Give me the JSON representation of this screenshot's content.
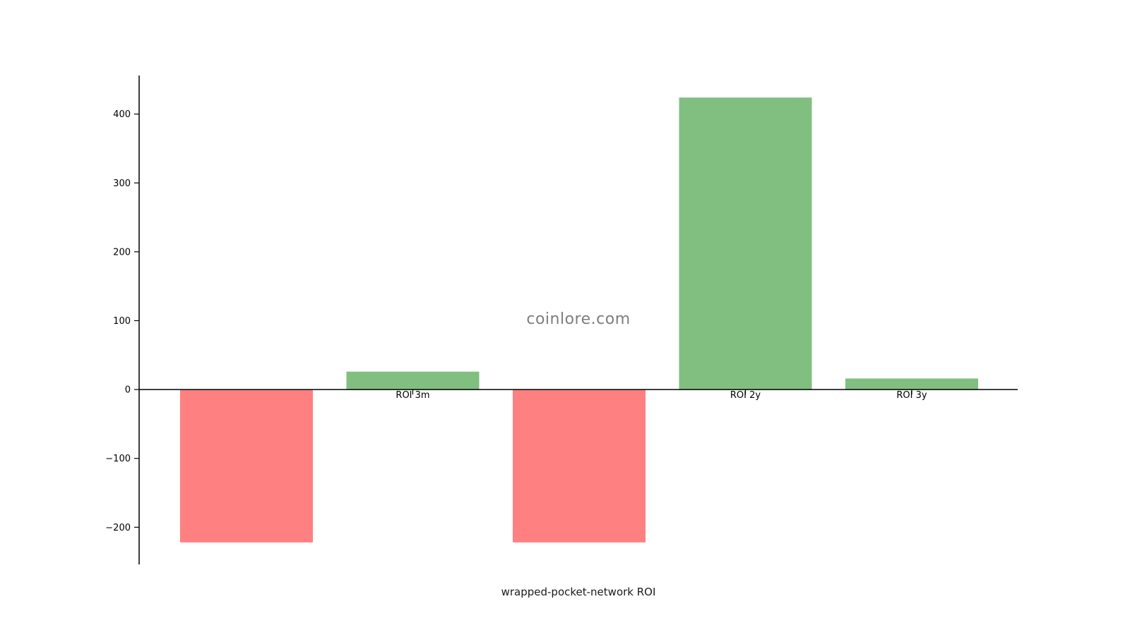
{
  "chart_data": {
    "type": "bar",
    "title": "wrapped-pocket-network ROI",
    "watermark": "coinlore.com",
    "categories": [
      "",
      "ROI 3m",
      "",
      "ROI 2y",
      "ROI 3y"
    ],
    "values": [
      -222,
      26,
      -222,
      424,
      16
    ],
    "series": [
      {
        "name": "ROI",
        "values": [
          -222,
          26,
          -222,
          424,
          16
        ]
      }
    ],
    "bar_colors": [
      "#ff8080",
      "#80bf80",
      "#ff8080",
      "#80bf80",
      "#80bf80"
    ],
    "positive_color": "#80bf80",
    "negative_color": "#ff8080",
    "yticks": [
      400,
      300,
      200,
      100,
      0,
      -100,
      -200
    ],
    "ylim": [
      -254,
      456
    ],
    "xlabel": "",
    "ylabel": "",
    "grid": false,
    "legend": null,
    "axis_color": "#000000",
    "tick_text_color": "#000000",
    "watermark_color": "#7d7d7d",
    "title_color": "#1a1a1a",
    "background_color": "#ffffff"
  }
}
